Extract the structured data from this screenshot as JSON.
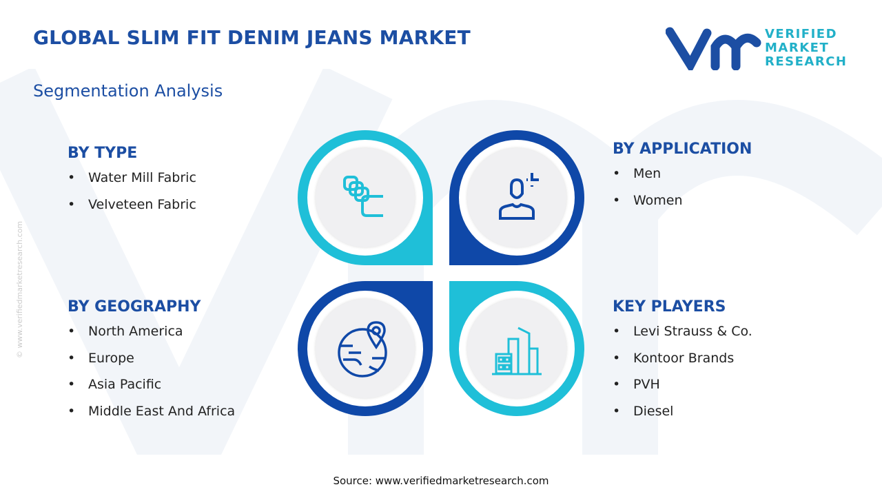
{
  "header": {
    "title": "GLOBAL SLIM FIT DENIM JEANS MARKET",
    "subtitle": "Segmentation Analysis"
  },
  "logo": {
    "text": "VERIFIED MARKET RESEARCH",
    "lines": [
      "VERIFIED",
      "MARKET",
      "RESEARCH"
    ]
  },
  "segments": [
    {
      "heading": "BY TYPE",
      "items": [
        "Water Mill Fabric",
        "Velveteen Fabric"
      ],
      "icon": "fabric-layers-icon"
    },
    {
      "heading": "BY APPLICATION",
      "items": [
        "Men",
        "Women"
      ],
      "icon": "person-icon"
    },
    {
      "heading": "BY GEOGRAPHY",
      "items": [
        "North America",
        "Europe",
        "Asia Pacific",
        "Middle East And Africa"
      ],
      "icon": "globe-pin-icon"
    },
    {
      "heading": "KEY PLAYERS",
      "items": [
        "Levi Strauss & Co.",
        "Kontoor Brands",
        "PVH",
        "Diesel"
      ],
      "icon": "buildings-icon"
    }
  ],
  "side_text": "© www.verifiedmarketresearch.com",
  "source": "Source: www.verifiedmarketresearch.com",
  "colors": {
    "dark": "#0f48a8",
    "teal": "#1fbfd8"
  }
}
